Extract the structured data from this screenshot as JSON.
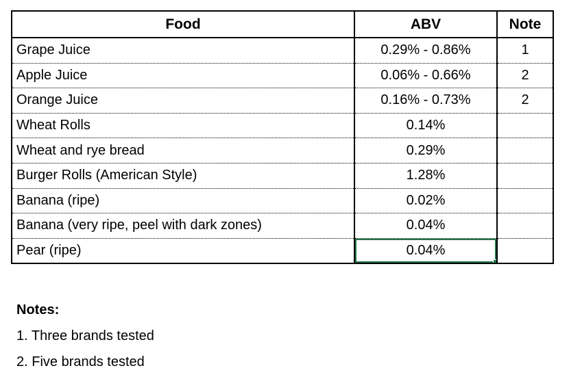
{
  "table": {
    "columns": [
      {
        "label": "Food"
      },
      {
        "label": "ABV"
      },
      {
        "label": "Note"
      }
    ],
    "rows": [
      {
        "food": "Grape Juice",
        "abv": "0.29% - 0.86%",
        "note": "1"
      },
      {
        "food": "Apple Juice",
        "abv": "0.06% - 0.66%",
        "note": "2"
      },
      {
        "food": "Orange Juice",
        "abv": "0.16% - 0.73%",
        "note": "2"
      },
      {
        "food": "Wheat Rolls",
        "abv": "0.14%",
        "note": ""
      },
      {
        "food": "Wheat and rye bread",
        "abv": "0.29%",
        "note": ""
      },
      {
        "food": "Burger Rolls (American Style)",
        "abv": "1.28%",
        "note": ""
      },
      {
        "food": "Banana (ripe)",
        "abv": "0.02%",
        "note": ""
      },
      {
        "food": "Banana (very ripe, peel with dark zones)",
        "abv": "0.04%",
        "note": ""
      },
      {
        "food": "Pear (ripe)",
        "abv": "0.04%",
        "note": ""
      }
    ]
  },
  "selection": {
    "selected_cell_row": "Pear (ripe)",
    "selected_cell_column": "ABV",
    "selected_cell_value": "0.04%",
    "color": "#217346"
  },
  "notes": {
    "title": "Notes:",
    "items": [
      "1. Three brands tested",
      "2. Five brands tested"
    ]
  }
}
